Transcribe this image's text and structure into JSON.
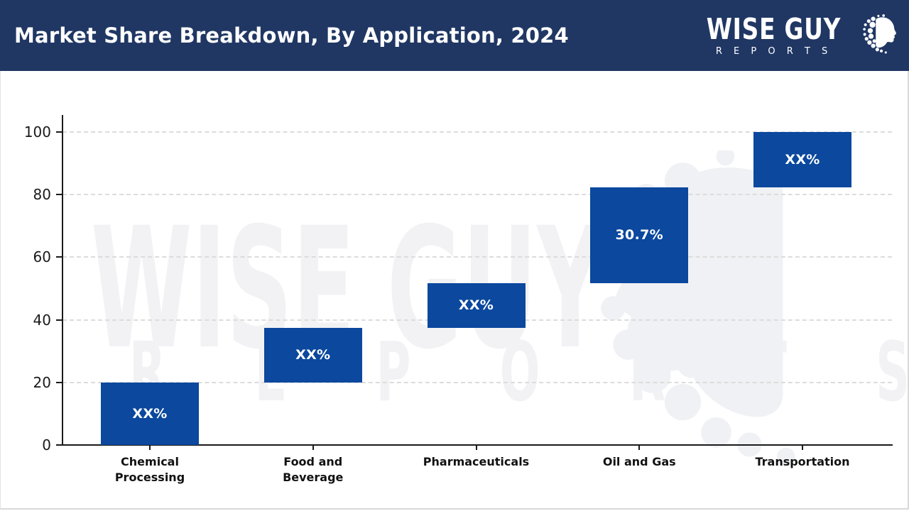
{
  "header": {
    "title": "Market Share Breakdown, By Application, 2024",
    "logo": {
      "wordmark": "WISE GUY",
      "subtext": "R E P O R T S"
    }
  },
  "watermark": {
    "line1": "WISE GUY",
    "line2": "R E P O R T S"
  },
  "chart_data": {
    "type": "bar",
    "subtype": "floating-waterfall",
    "title": "Market Share Breakdown, By Application, 2024",
    "categories": [
      "Chemical Processing",
      "Food and Beverage",
      "Pharmaceuticals",
      "Oil and Gas",
      "Transportation"
    ],
    "series": [
      {
        "name": "Market share (%)",
        "segments": [
          {
            "category": "Chemical Processing",
            "start": 0,
            "end": 20,
            "label": "XX%"
          },
          {
            "category": "Food and Beverage",
            "start": 20,
            "end": 37.5,
            "label": "XX%"
          },
          {
            "category": "Pharmaceuticals",
            "start": 37.5,
            "end": 51.7,
            "label": "XX%"
          },
          {
            "category": "Oil and Gas",
            "start": 51.7,
            "end": 82.4,
            "label": "30.7%"
          },
          {
            "category": "Transportation",
            "start": 82.4,
            "end": 100,
            "label": "XX%"
          }
        ]
      }
    ],
    "ylim": [
      0,
      100
    ],
    "yticks": [
      0,
      20,
      40,
      60,
      80,
      100
    ],
    "xlabel": "",
    "ylabel": "",
    "grid": "horizontal-dashed",
    "legend": "none",
    "colors": {
      "bar": "#0b489e",
      "bar_label": "#ffffff",
      "grid": "#dcdcdc",
      "axis": "#1a1a1a",
      "tick_label": "#1a1a1a",
      "header_bg": "#203764",
      "header_text": "#ffffff",
      "watermark": "#f2f2f5"
    }
  }
}
